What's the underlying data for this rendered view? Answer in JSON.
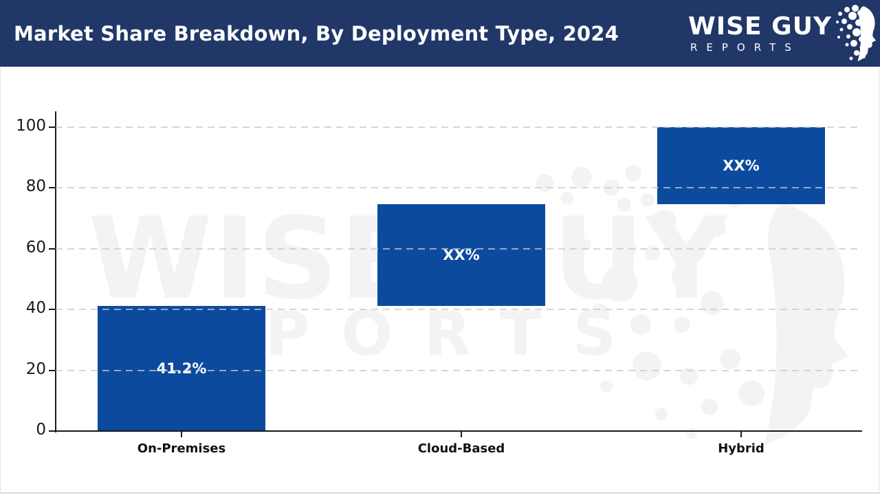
{
  "header": {
    "title": "Market Share Breakdown, By Deployment Type, 2024",
    "background_color": "#203768",
    "logo": {
      "brand_line1": "WISE GUY",
      "brand_line2": "REPORTS",
      "icon": "wiseguy-dotted-head-icon"
    }
  },
  "watermark": {
    "line1": "WISE GUY",
    "line2": "REPORTS"
  },
  "chart_data": {
    "type": "bar",
    "subtype": "waterfall-breakdown",
    "title": "Market Share Breakdown, By Deployment Type, 2024",
    "categories": [
      "On-Premises",
      "Cloud-Based",
      "Hybrid"
    ],
    "segments": [
      {
        "category": "On-Premises",
        "start": 0,
        "end": 41.2,
        "value": 41.2,
        "label": "41.2%"
      },
      {
        "category": "Cloud-Based",
        "start": 41.2,
        "end": 74.7,
        "value": 33.5,
        "label": "XX%"
      },
      {
        "category": "Hybrid",
        "start": 74.7,
        "end": 100,
        "value": 25.3,
        "label": "XX%"
      }
    ],
    "yticks": [
      0,
      20,
      40,
      60,
      80,
      100
    ],
    "ylim": [
      0,
      105
    ],
    "xlabel": "",
    "ylabel": "",
    "grid": "horizontal-dashed",
    "legend": "none",
    "bar_color": "#0c4a9e",
    "bar_label_color": "#ffffff",
    "axis_color": "#1a1a1a",
    "grid_color": "#d9d9d9",
    "watermark_color": "#f3f3f5"
  }
}
